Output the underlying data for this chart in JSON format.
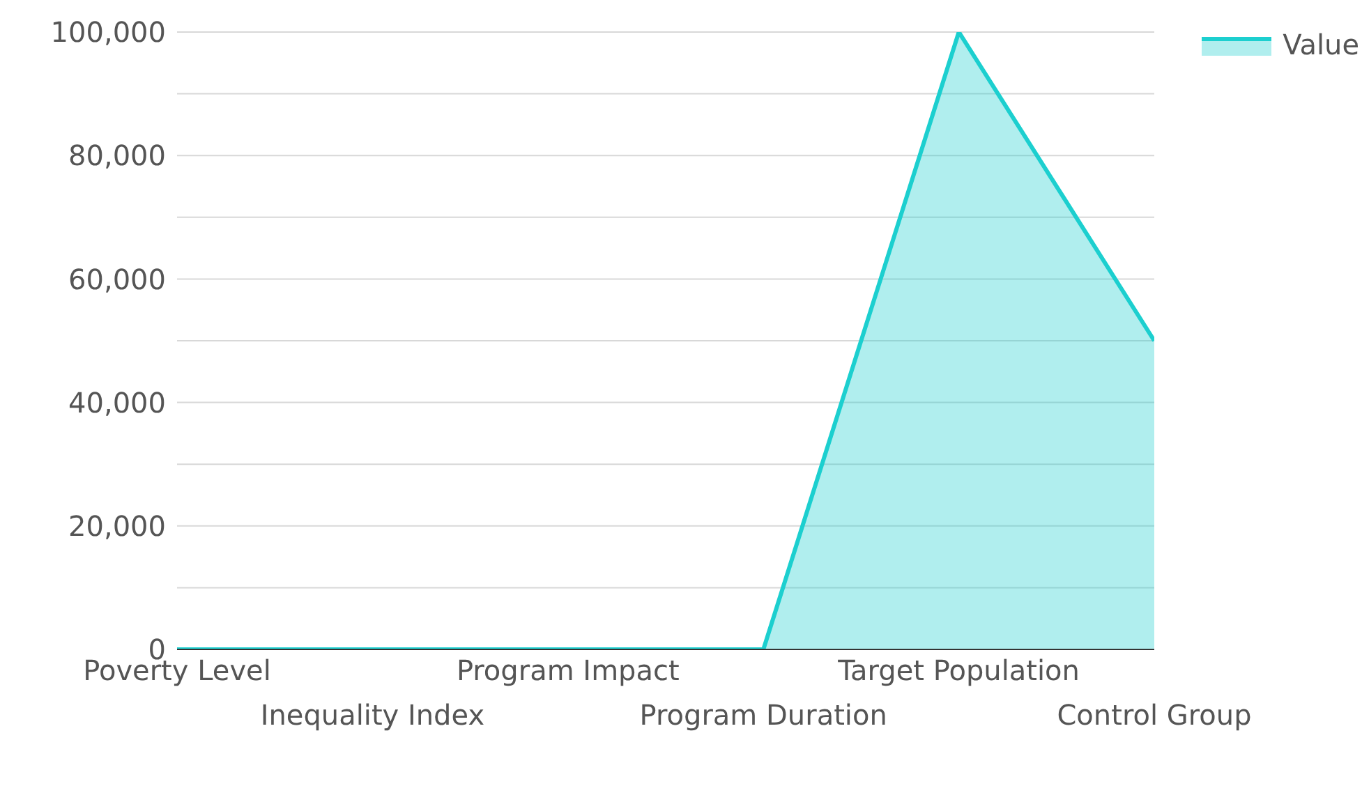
{
  "chart_data": {
    "type": "area",
    "categories": [
      "Poverty Level",
      "Inequality Index",
      "Program Impact",
      "Program Duration",
      "Target Population",
      "Control Group"
    ],
    "series": [
      {
        "name": "Value",
        "color": "#1ccfcf",
        "values": [
          0,
          0,
          0,
          0,
          100000,
          50000
        ]
      }
    ],
    "ylim": [
      0,
      100000
    ],
    "yticks": [
      0,
      {
        "value": 10000,
        "label": null
      },
      {
        "value": 20000,
        "label": "20,000"
      },
      {
        "value": 30000,
        "label": null
      },
      {
        "value": 40000,
        "label": "40,000"
      },
      {
        "value": 50000,
        "label": null
      },
      {
        "value": 60000,
        "label": "60,000"
      },
      {
        "value": 70000,
        "label": null
      },
      {
        "value": 80000,
        "label": "80,000"
      },
      {
        "value": 90000,
        "label": null
      },
      {
        "value": 100000,
        "label": "100,000"
      }
    ],
    "grid": "y",
    "legend": "top right"
  }
}
